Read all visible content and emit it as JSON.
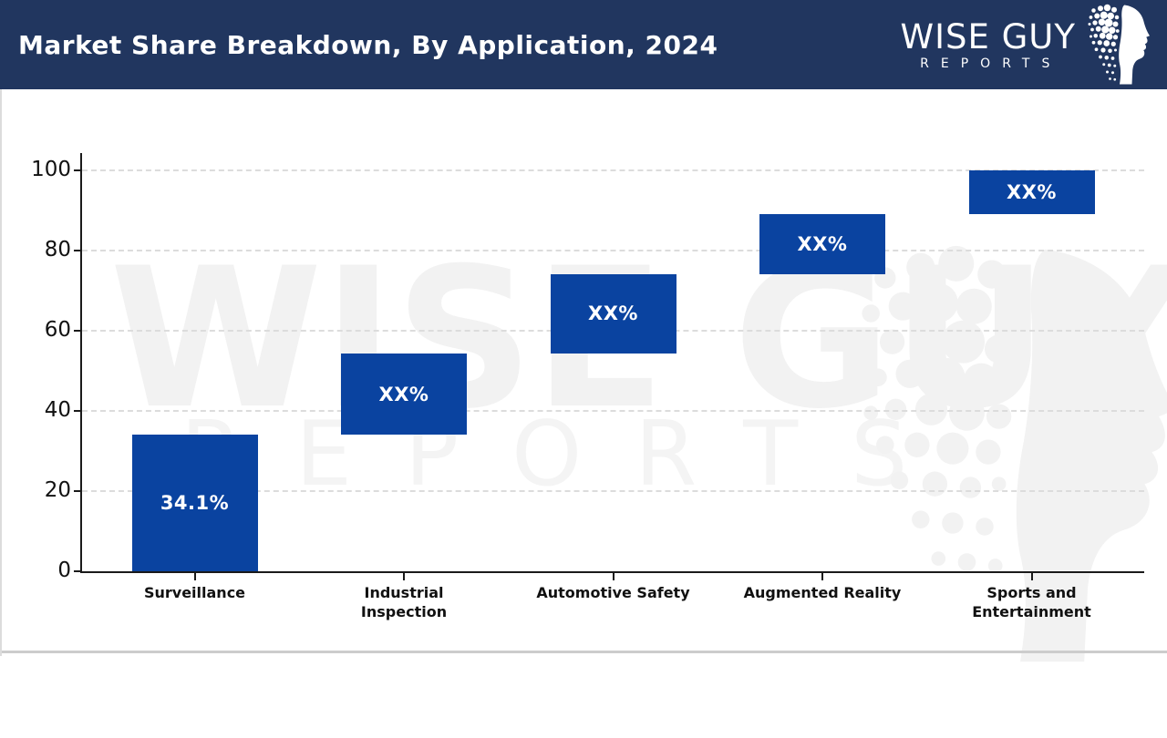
{
  "header": {
    "title": "Market Share Breakdown, By Application, 2024",
    "logo": {
      "brand": "WISE GUY",
      "sub": "REPORTS"
    }
  },
  "watermark": {
    "brand": "WISE GUY",
    "sub": "REPORTS"
  },
  "chart_data": {
    "type": "bar",
    "variant": "waterfall",
    "title": "Market Share Breakdown, By Application, 2024",
    "categories": [
      "Surveillance",
      "Industrial\nInspection",
      "Automotive Safety",
      "Augmented Reality",
      "Sports and\nEntertainment"
    ],
    "segments": [
      {
        "category": "Surveillance",
        "start": 0,
        "end": 34.1,
        "label": "34.1%"
      },
      {
        "category": "Industrial Inspection",
        "start": 34.1,
        "end": 54.3,
        "label": "XX%"
      },
      {
        "category": "Automotive Safety",
        "start": 54.3,
        "end": 74.2,
        "label": "XX%"
      },
      {
        "category": "Augmented Reality",
        "start": 74.2,
        "end": 89.1,
        "label": "XX%"
      },
      {
        "category": "Sports and Entertainment",
        "start": 89.1,
        "end": 100,
        "label": "XX%"
      }
    ],
    "xlabel": "",
    "ylabel": "",
    "yticks": [
      0,
      20,
      40,
      60,
      80,
      100
    ],
    "ylim": [
      0,
      104.5
    ],
    "grid": true,
    "grid_style": "dashed",
    "legend": "none",
    "colors": {
      "bar": "#0a43a0",
      "bar_label": "#ffffff",
      "grid": "#dcdcdc",
      "axis": "#1a1a1a",
      "header_bg": "#21365f",
      "watermark": "#f2f2f2"
    }
  }
}
